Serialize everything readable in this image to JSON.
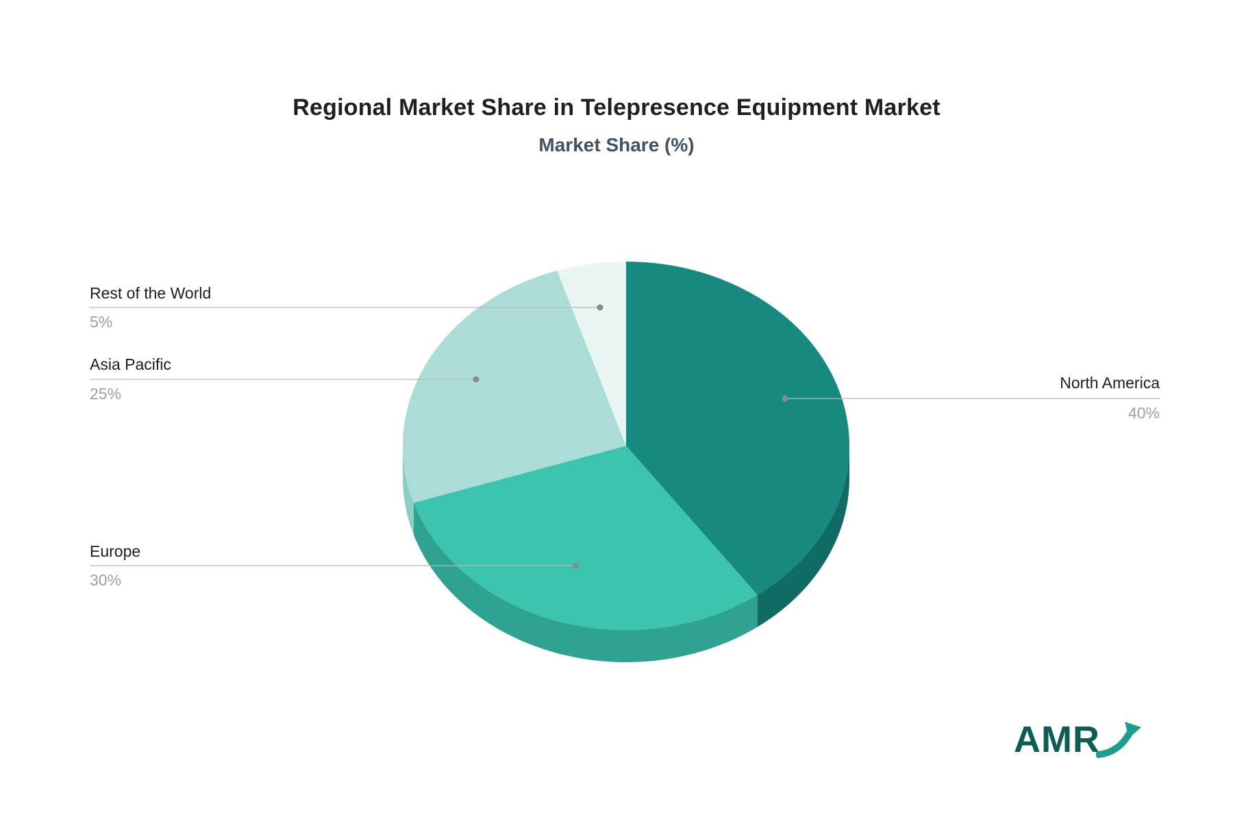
{
  "page": {
    "background": "#ffffff"
  },
  "logo": {
    "text": "AMR",
    "arrow_icon": "trend-up-arrow",
    "color": "#0d5c55",
    "arrow_color": "#1b9e8f"
  },
  "chart_data": {
    "type": "pie",
    "style": "3d",
    "title": "Regional Market Share in Telepresence Equipment Market",
    "subtitle": "Market Share (%)",
    "unit": "%",
    "start_angle_deg": -90,
    "direction": "clockwise",
    "legend_position": "none",
    "slices": [
      {
        "label": "North America",
        "value": 40,
        "display": "40%",
        "color": "#178a80",
        "side_color": "#0f6b63",
        "label_side": "right"
      },
      {
        "label": "Europe",
        "value": 30,
        "display": "30%",
        "color": "#3cc4ae",
        "side_color": "#2fa392",
        "label_side": "left"
      },
      {
        "label": "Asia Pacific",
        "value": 25,
        "display": "25%",
        "color": "#abdcd5",
        "side_color": "#8ecdc4",
        "label_side": "left"
      },
      {
        "label": "Rest of the World",
        "value": 5,
        "display": "5%",
        "color": "#e9f5f3",
        "side_color": "#cfe8e4",
        "label_side": "left"
      }
    ],
    "colors": {
      "label_text": "#1c1c1c",
      "value_text": "#9aa0a6",
      "leader_line": "#b8b8b8",
      "leader_dot": "#8a8a8a",
      "background": "#ffffff"
    }
  }
}
